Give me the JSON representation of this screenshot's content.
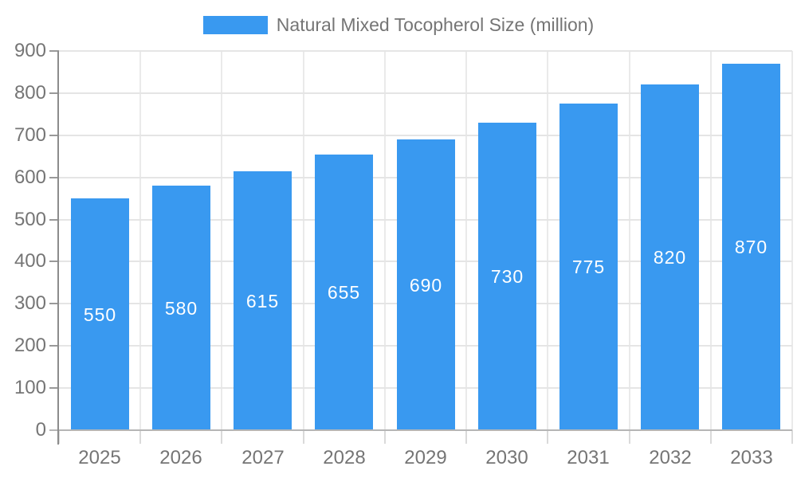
{
  "legend": {
    "label": "Natural Mixed Tocopherol Size (million)"
  },
  "chart_data": {
    "type": "bar",
    "title": "",
    "categories": [
      "2025",
      "2026",
      "2027",
      "2028",
      "2029",
      "2030",
      "2031",
      "2032",
      "2033"
    ],
    "series": [
      {
        "name": "Natural Mixed Tocopherol Size (million)",
        "values": [
          550,
          580,
          615,
          655,
          690,
          730,
          775,
          820,
          870
        ],
        "color": "#3999F0"
      }
    ],
    "xlabel": "",
    "ylabel": "",
    "ylim": [
      0,
      900
    ],
    "yticks": [
      0,
      100,
      200,
      300,
      400,
      500,
      600,
      700,
      800,
      900
    ],
    "grid": true,
    "legend_position": "top-center",
    "value_labels": {
      "position": "inside-center",
      "color": "#FFFFFF"
    }
  },
  "colors": {
    "bar": "#3999F0",
    "axis_text": "#757575",
    "y_axis_line": "#8C8C8C",
    "y_tick": "#999999",
    "baseline": "#B5B5B5",
    "gridline_h": "#E5E5E5",
    "gridline_v": "#EAEAEA",
    "x_tick": "#DADADA",
    "value_label_text": "#FFFFFF",
    "background": "#FFFFFF"
  }
}
